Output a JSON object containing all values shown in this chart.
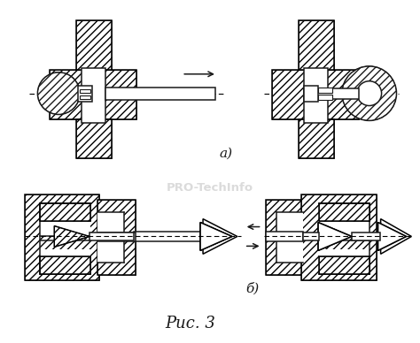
{
  "title": "",
  "watermark": "PRO-TechInfo",
  "watermark_color": "#c8c8c8",
  "label_a": "а)",
  "label_b": "б)",
  "caption": "Рис. 3",
  "bg_color": "#ffffff",
  "line_color": "#1a1a1a",
  "fig_width": 4.74,
  "fig_height": 3.88,
  "dpi": 100
}
